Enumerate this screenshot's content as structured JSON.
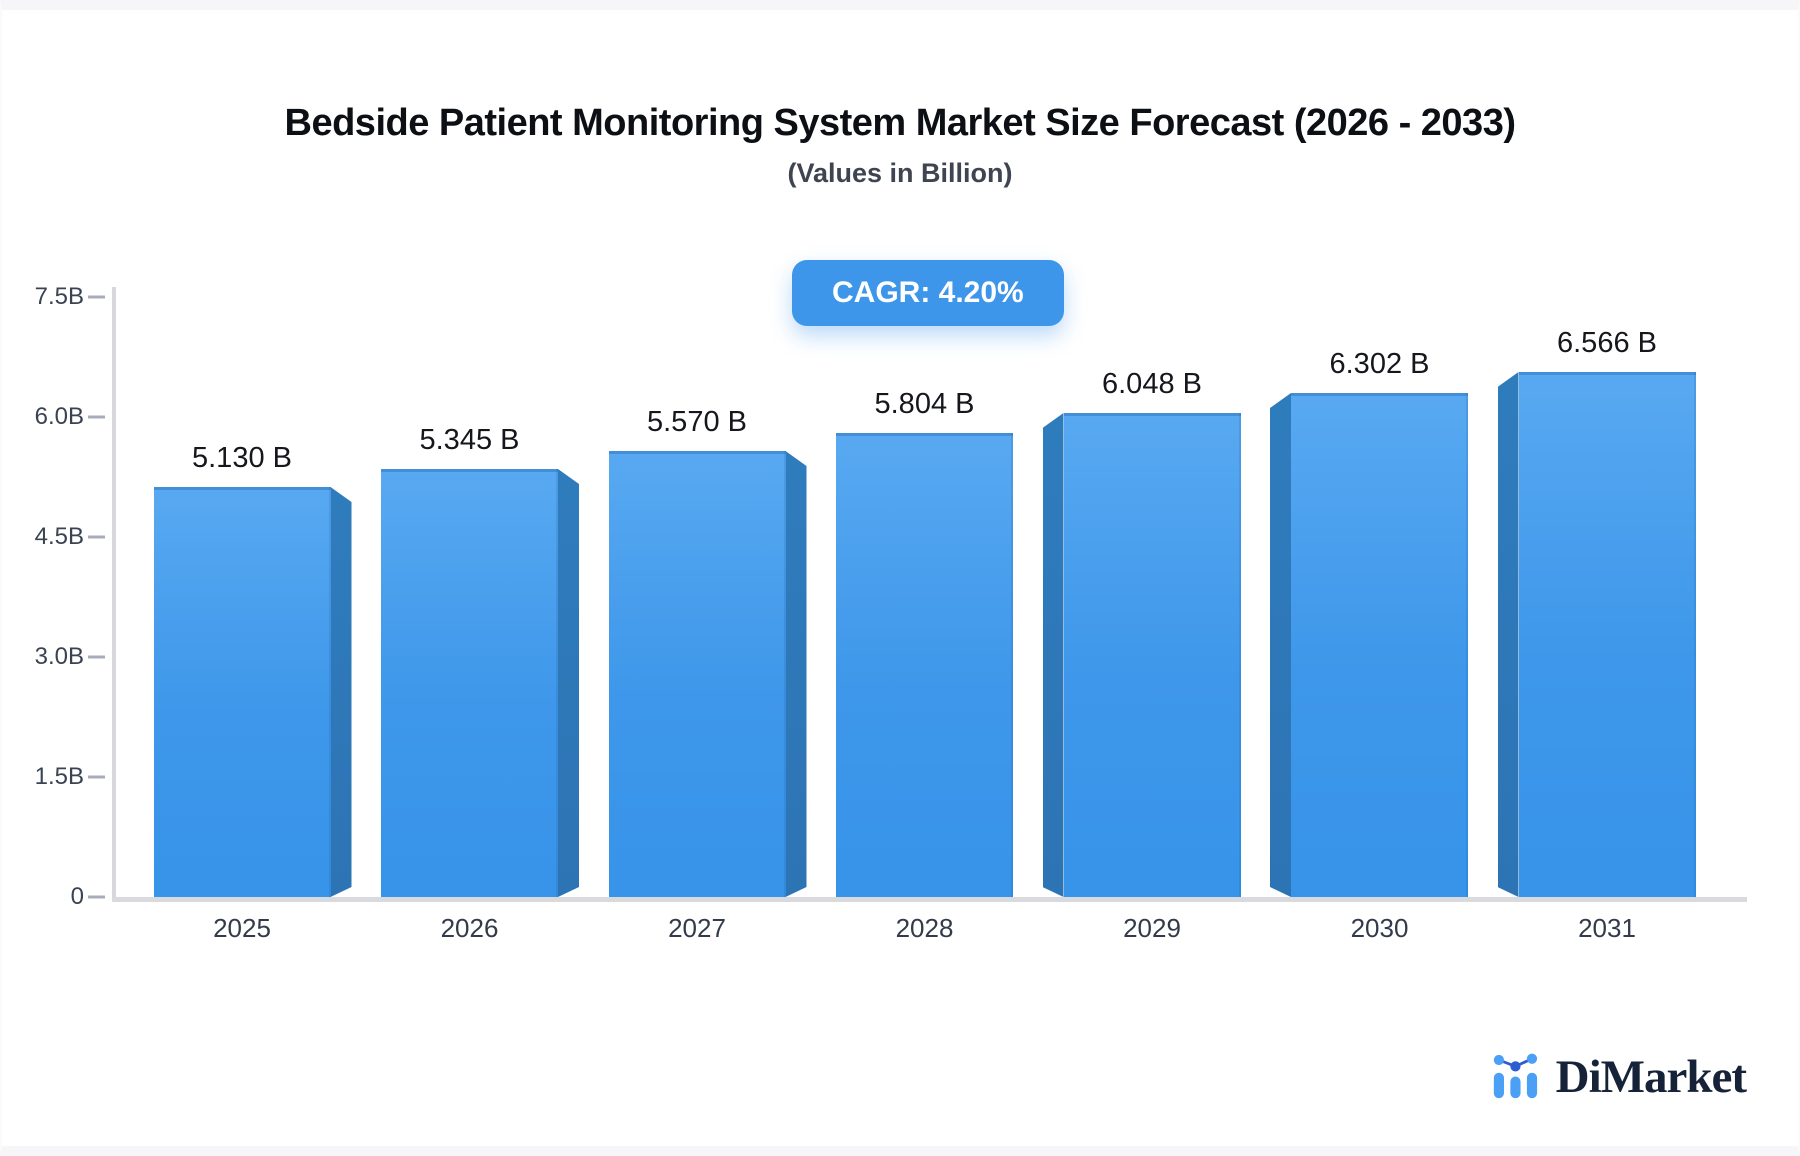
{
  "header": {
    "title": "Bedside Patient Monitoring System Market Size Forecast (2026 - 2033)",
    "subtitle": "(Values in Billion)"
  },
  "badge": {
    "label": "CAGR: 4.20%"
  },
  "chart_data": {
    "type": "bar",
    "categories": [
      "2025",
      "2026",
      "2027",
      "2028",
      "2029",
      "2030",
      "2031"
    ],
    "values": [
      5.13,
      5.345,
      5.57,
      5.804,
      6.048,
      6.302,
      6.566
    ],
    "value_labels": [
      "5.130 B",
      "5.345 B",
      "5.570 B",
      "5.804 B",
      "6.048 B",
      "6.302 B",
      "6.566 B"
    ],
    "title": "Bedside Patient Monitoring System Market Size Forecast (2026 - 2033)",
    "subtitle": "(Values in Billion)",
    "xlabel": "",
    "ylabel": "",
    "ylim": [
      0,
      7.5
    ],
    "ytick_labels": [
      "7.5B",
      "6.0B",
      "4.5B",
      "3.0B",
      "1.5B",
      "0"
    ],
    "grid": false,
    "legend": false,
    "bar_3d_sides": [
      "right",
      "right",
      "right",
      "none",
      "left",
      "left",
      "left"
    ],
    "colors": {
      "bar_face": "#3e97ea",
      "bar_side": "#2d76b6",
      "axis": "#d6d8dc",
      "tick": "#a7adb8",
      "badge_bg": "#3e96ea",
      "badge_text": "#ffffff"
    }
  },
  "logo": {
    "text": "DiMarket",
    "icon": "bar-chart-logo-icon"
  }
}
